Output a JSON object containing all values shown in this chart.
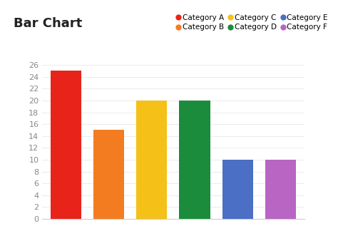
{
  "title": "Bar Chart",
  "categories": [
    "Category A",
    "Category B",
    "Category C",
    "Category D",
    "Category E",
    "Category F"
  ],
  "values": [
    25,
    15,
    20,
    20,
    10,
    10
  ],
  "bar_colors": [
    "#e8241a",
    "#f47c20",
    "#f5c018",
    "#1a8c3c",
    "#4a6fc4",
    "#b865c4"
  ],
  "legend_labels": [
    "Category A",
    "Category B",
    "Category C",
    "Category D",
    "Category E",
    "Category F"
  ],
  "legend_colors": [
    "#e8241a",
    "#f47c20",
    "#f5c018",
    "#1a8c3c",
    "#4a6fc4",
    "#b865c4"
  ],
  "ylim": [
    0,
    26
  ],
  "yticks": [
    0,
    2,
    4,
    6,
    8,
    10,
    12,
    14,
    16,
    18,
    20,
    22,
    24,
    26
  ],
  "title_fontsize": 13,
  "legend_fontsize": 7.5,
  "background_color": "#ffffff",
  "bar_width": 0.72
}
